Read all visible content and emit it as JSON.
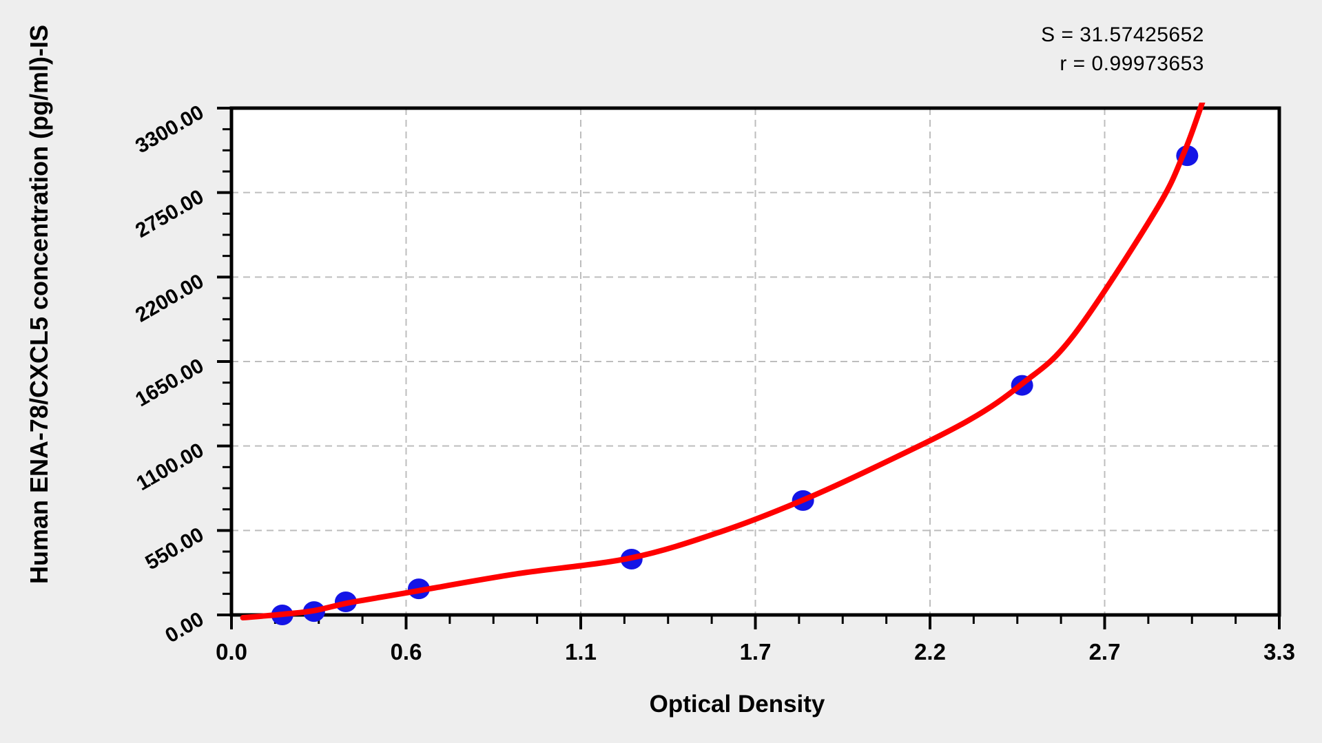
{
  "stats": {
    "s_line": "S = 31.57425652",
    "r_line": "r = 0.99973653"
  },
  "chart_data": {
    "type": "scatter",
    "title": "",
    "xlabel": "Optical Density",
    "ylabel": "Human ENA-78/CXCL5 concentration (pg/ml)-IS",
    "x_range": [
      0,
      3.3
    ],
    "y_range": [
      0,
      3300
    ],
    "x_major_ticks": [
      {
        "value": 0.0,
        "label": "0.0"
      },
      {
        "value": 0.55,
        "label": "0.6"
      },
      {
        "value": 1.1,
        "label": "1.1"
      },
      {
        "value": 1.65,
        "label": "1.7"
      },
      {
        "value": 2.2,
        "label": "2.2"
      },
      {
        "value": 2.75,
        "label": "2.7"
      },
      {
        "value": 3.3,
        "label": "3.3"
      }
    ],
    "y_major_ticks": [
      {
        "value": 0,
        "label": "0.00"
      },
      {
        "value": 550,
        "label": "550.00"
      },
      {
        "value": 1100,
        "label": "1100.00"
      },
      {
        "value": 1650,
        "label": "1650.00"
      },
      {
        "value": 2200,
        "label": "2200.00"
      },
      {
        "value": 2750,
        "label": "2750.00"
      },
      {
        "value": 3300,
        "label": "3300.00"
      }
    ],
    "x_minor_step": 0.1375,
    "y_minor_step": 137.5,
    "grid": {
      "show": true,
      "style": "dashed",
      "at": "major-ticks"
    },
    "legend": "none",
    "points": [
      {
        "od": 0.16,
        "conc": 0
      },
      {
        "od": 0.26,
        "conc": 22
      },
      {
        "od": 0.36,
        "conc": 85
      },
      {
        "od": 0.59,
        "conc": 170
      },
      {
        "od": 1.26,
        "conc": 363
      },
      {
        "od": 1.8,
        "conc": 745
      },
      {
        "od": 2.49,
        "conc": 1495
      },
      {
        "od": 3.01,
        "conc": 2990
      }
    ],
    "fit_curve": [
      [
        0.036,
        -18
      ],
      [
        0.16,
        4
      ],
      [
        0.26,
        28
      ],
      [
        0.36,
        75
      ],
      [
        0.47,
        115
      ],
      [
        0.59,
        158
      ],
      [
        0.9,
        268
      ],
      [
        1.26,
        372
      ],
      [
        1.55,
        548
      ],
      [
        1.8,
        748
      ],
      [
        2.05,
        985
      ],
      [
        2.32,
        1265
      ],
      [
        2.49,
        1505
      ],
      [
        2.65,
        1815
      ],
      [
        2.91,
        2630
      ],
      [
        3.0,
        3010
      ],
      [
        3.06,
        3350
      ]
    ],
    "colors": {
      "curve": "#ff0000",
      "marker": "#1414e6",
      "grid": "#bdbdbd",
      "axis": "#000000",
      "plot_bg": "#ffffff",
      "page_bg": "#eeeeee",
      "text": "#000000"
    }
  }
}
